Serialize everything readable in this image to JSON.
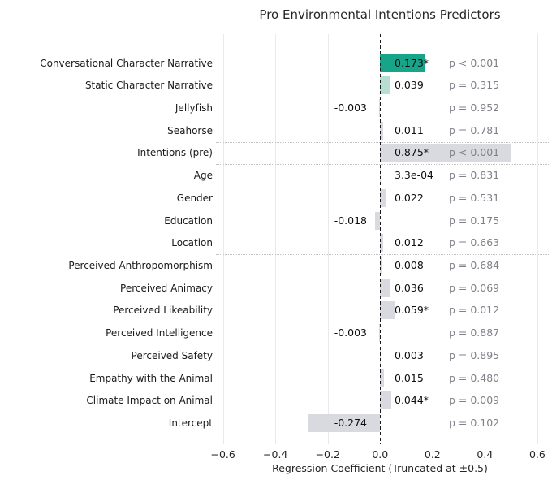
{
  "title": "Pro Environmental Intentions Predictors",
  "chart_data": {
    "type": "bar",
    "orientation": "horizontal",
    "title": "Pro Environmental Intentions Predictors",
    "xlabel": "Regression Coefficient (Truncated at ±0.5)",
    "xlim": [
      -0.65,
      0.65
    ],
    "truncated_at": 0.5,
    "grid": true,
    "zero_line": "dashed",
    "x_ticks": [
      {
        "value": -0.6,
        "label": "−0.6"
      },
      {
        "value": -0.4,
        "label": "−0.4"
      },
      {
        "value": -0.2,
        "label": "−0.2"
      },
      {
        "value": 0.0,
        "label": "0.0"
      },
      {
        "value": 0.2,
        "label": "0.2"
      },
      {
        "value": 0.4,
        "label": "0.4"
      },
      {
        "value": 0.6,
        "label": "0.6"
      }
    ],
    "rows": [
      {
        "label": "Conversational Character Narrative",
        "value": 0.173,
        "value_label": "0.173*",
        "p_label": "p < 0.001",
        "significant": true,
        "bar_color_key": "teal_dark"
      },
      {
        "label": "Static Character Narrative",
        "value": 0.039,
        "value_label": "0.039",
        "p_label": "p = 0.315",
        "significant": false,
        "bar_color_key": "teal_light"
      },
      {
        "label": "Jellyfish",
        "value": -0.003,
        "value_label": "-0.003",
        "p_label": "p = 0.952",
        "significant": false,
        "bar_color_key": "gray"
      },
      {
        "label": "Seahorse",
        "value": 0.011,
        "value_label": "0.011",
        "p_label": "p = 0.781",
        "significant": false,
        "bar_color_key": "gray"
      },
      {
        "label": "Intentions (pre)",
        "value": 0.875,
        "value_label": "0.875*",
        "p_label": "p < 0.001",
        "significant": true,
        "bar_color_key": "gray"
      },
      {
        "label": "Age",
        "value": 0.00033,
        "value_label": "3.3e-04",
        "p_label": "p = 0.831",
        "significant": false,
        "bar_color_key": "gray"
      },
      {
        "label": "Gender",
        "value": 0.022,
        "value_label": "0.022",
        "p_label": "p = 0.531",
        "significant": false,
        "bar_color_key": "gray"
      },
      {
        "label": "Education",
        "value": -0.018,
        "value_label": "-0.018",
        "p_label": "p = 0.175",
        "significant": false,
        "bar_color_key": "gray"
      },
      {
        "label": "Location",
        "value": 0.012,
        "value_label": "0.012",
        "p_label": "p = 0.663",
        "significant": false,
        "bar_color_key": "gray"
      },
      {
        "label": "Perceived Anthropomorphism",
        "value": 0.008,
        "value_label": "0.008",
        "p_label": "p = 0.684",
        "significant": false,
        "bar_color_key": "gray"
      },
      {
        "label": "Perceived Animacy",
        "value": 0.036,
        "value_label": "0.036",
        "p_label": "p = 0.069",
        "significant": false,
        "bar_color_key": "gray"
      },
      {
        "label": "Perceived Likeability",
        "value": 0.059,
        "value_label": "0.059*",
        "p_label": "p = 0.012",
        "significant": true,
        "bar_color_key": "gray"
      },
      {
        "label": "Perceived Intelligence",
        "value": -0.003,
        "value_label": "-0.003",
        "p_label": "p = 0.887",
        "significant": false,
        "bar_color_key": "gray"
      },
      {
        "label": "Perceived Safety",
        "value": 0.003,
        "value_label": "0.003",
        "p_label": "p = 0.895",
        "significant": false,
        "bar_color_key": "gray"
      },
      {
        "label": "Empathy with the Animal",
        "value": 0.015,
        "value_label": "0.015",
        "p_label": "p = 0.480",
        "significant": false,
        "bar_color_key": "gray"
      },
      {
        "label": "Climate Impact on Animal",
        "value": 0.044,
        "value_label": "0.044*",
        "p_label": "p = 0.009",
        "significant": true,
        "bar_color_key": "gray"
      },
      {
        "label": "Intercept",
        "value": -0.274,
        "value_label": "-0.274",
        "p_label": "p = 0.102",
        "significant": false,
        "bar_color_key": "gray"
      }
    ],
    "separators_after_rows": [
      2,
      4,
      5,
      9
    ],
    "colors": {
      "teal_dark": "#17a589",
      "teal_light": "#b6ded3",
      "gray": "#d9d9e0",
      "value_text": "#0d0d0d",
      "p_text": "#80808a",
      "label_text": "#1a1a1a",
      "grid": "#e9e9ec",
      "separator": "#c2c2c2",
      "zero_line": "#1a1a1a"
    }
  }
}
